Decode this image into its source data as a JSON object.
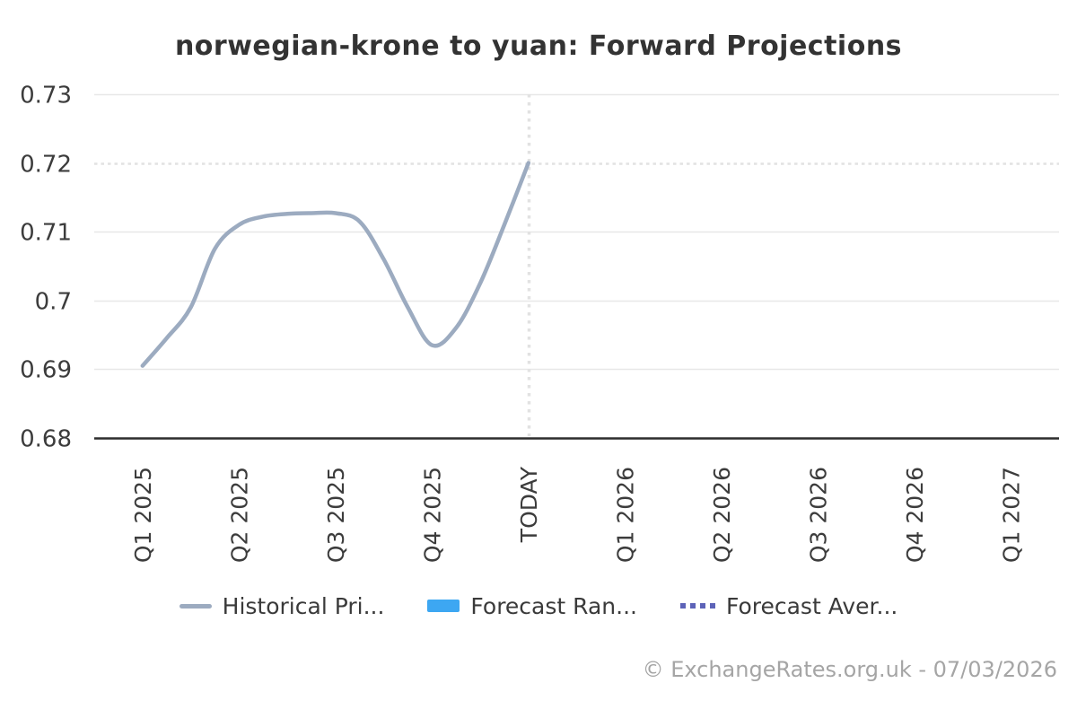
{
  "title": "norwegian-krone to yuan: Forward Projections",
  "copyright": "© ExchangeRates.org.uk - 07/03/2026",
  "legend": {
    "items": [
      {
        "name": "historical-price",
        "label": "Historical Pri...",
        "swatch": "line",
        "color": "#9cabc0"
      },
      {
        "name": "forecast-range",
        "label": "Forecast Ran...",
        "swatch": "area",
        "color": "#3da7f2"
      },
      {
        "name": "forecast-average",
        "label": "Forecast Aver...",
        "swatch": "dotted",
        "color": "#5d63b8"
      }
    ]
  },
  "chart_data": {
    "type": "line",
    "title": "norwegian-krone to yuan: Forward Projections",
    "xlabel": "",
    "ylabel": "",
    "grid": true,
    "legend_position": "bottom",
    "categories": [
      "Q1 2025",
      "Q2 2025",
      "Q3 2025",
      "Q4 2025",
      "TODAY",
      "Q1 2026",
      "Q2 2026",
      "Q3 2026",
      "Q4 2026",
      "Q1 2027"
    ],
    "ylim": [
      0.68,
      0.73
    ],
    "yticks": [
      {
        "label": "0.73",
        "value": 0.73,
        "style": "solid"
      },
      {
        "label": "0.72",
        "value": 0.72,
        "style": "dotted"
      },
      {
        "label": "0.71",
        "value": 0.71,
        "style": "solid"
      },
      {
        "label": "0.7",
        "value": 0.7,
        "style": "solid"
      },
      {
        "label": "0.69",
        "value": 0.69,
        "style": "solid"
      },
      {
        "label": "0.68",
        "value": 0.68,
        "style": "axis"
      }
    ],
    "today_marker": {
      "category_index": 4,
      "style": "dotted"
    },
    "series": [
      {
        "name": "Historical Price",
        "color": "#9cabc0",
        "x_unit": "category_index",
        "points": [
          [
            0.0,
            0.6905
          ],
          [
            0.25,
            0.6945
          ],
          [
            0.5,
            0.699
          ],
          [
            0.75,
            0.7075
          ],
          [
            1.0,
            0.711
          ],
          [
            1.25,
            0.7122
          ],
          [
            1.5,
            0.7126
          ],
          [
            1.75,
            0.7127
          ],
          [
            2.0,
            0.7127
          ],
          [
            2.25,
            0.7115
          ],
          [
            2.5,
            0.706
          ],
          [
            2.75,
            0.699
          ],
          [
            3.0,
            0.6935
          ],
          [
            3.25,
            0.696
          ],
          [
            3.5,
            0.7025
          ],
          [
            3.75,
            0.711
          ],
          [
            4.0,
            0.72
          ]
        ]
      },
      {
        "name": "Forecast Range",
        "color": "#3da7f2",
        "x_unit": "category_index",
        "points": []
      },
      {
        "name": "Forecast Average",
        "color": "#5d63b8",
        "x_unit": "category_index",
        "points": []
      }
    ],
    "colors": {
      "grid_line": "#e8e8e8",
      "dotted_line": "#e2e2e2",
      "axis_line": "#2d2d2d",
      "tick_text": "#3c3c3c"
    }
  }
}
